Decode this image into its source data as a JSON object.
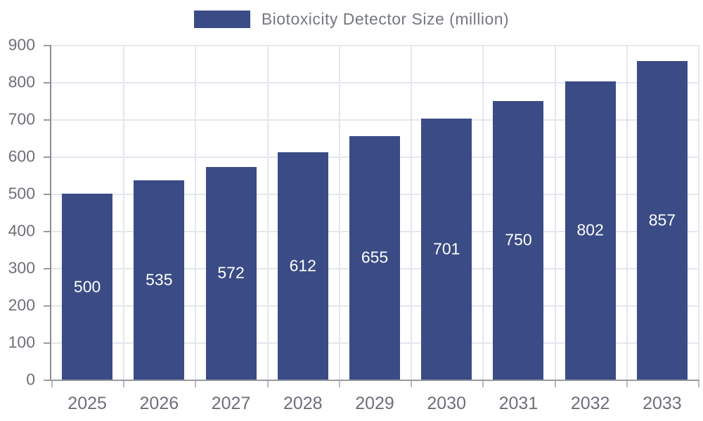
{
  "chart_data": {
    "type": "bar",
    "title": "Biotoxicity Detector Size (million)",
    "legend": {
      "label": "Biotoxicity Detector Size (million)",
      "position": "top-center"
    },
    "categories": [
      "2025",
      "2026",
      "2027",
      "2028",
      "2029",
      "2030",
      "2031",
      "2032",
      "2033"
    ],
    "series": [
      {
        "name": "Biotoxicity Detector Size (million)",
        "values": [
          500,
          535,
          572,
          612,
          655,
          701,
          750,
          802,
          857
        ]
      }
    ],
    "xlabel": "",
    "ylabel": "",
    "ylim": [
      0,
      900
    ],
    "ytick_interval": 100,
    "ytick_labels": [
      "0",
      "100",
      "200",
      "300",
      "400",
      "500",
      "600",
      "700",
      "800",
      "900"
    ],
    "grid": true,
    "value_labels_position": "inside-center",
    "colors": {
      "bar": "#3a4b85",
      "bar_label_text": "#ffffff",
      "axis_text": "#6e7079",
      "legend_text": "#75787f",
      "gridline": "#e4e7ee",
      "axis_line": "#9a9a9f"
    }
  }
}
